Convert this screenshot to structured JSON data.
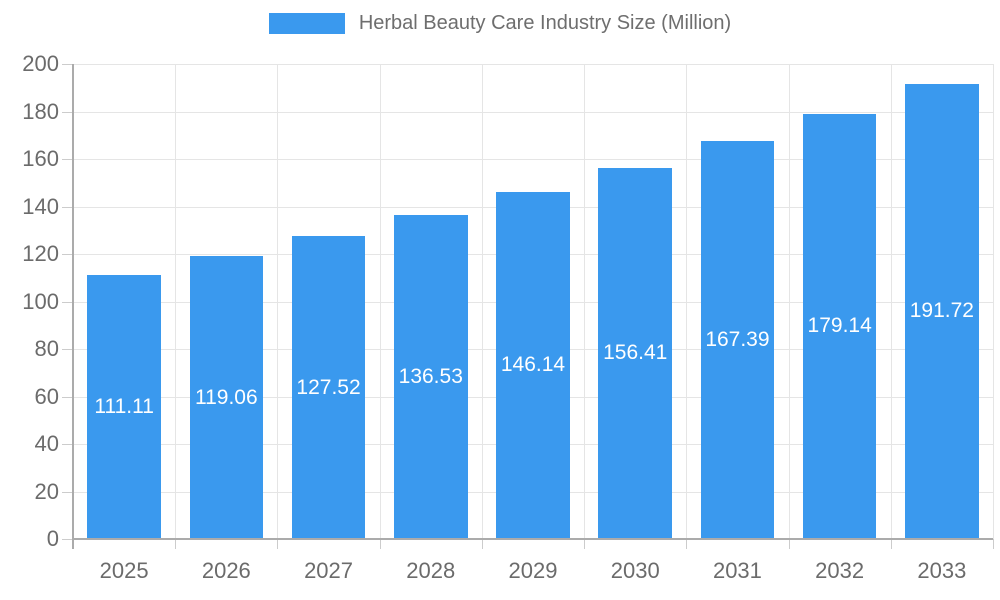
{
  "chart_data": {
    "type": "bar",
    "title": "Herbal Beauty Care Industry Size (Million)",
    "categories": [
      "2025",
      "2026",
      "2027",
      "2028",
      "2029",
      "2030",
      "2031",
      "2032",
      "2033"
    ],
    "values": [
      111.11,
      119.06,
      127.52,
      136.53,
      146.14,
      156.41,
      167.39,
      179.14,
      191.72
    ],
    "value_labels": [
      "111.11",
      "119.06",
      "127.52",
      "136.53",
      "146.14",
      "156.41",
      "167.39",
      "179.14",
      "191.72"
    ],
    "xlabel": "",
    "ylabel": "",
    "ylim": [
      0,
      200
    ],
    "ytick_step": 20,
    "ytick_labels": [
      "0",
      "20",
      "40",
      "60",
      "80",
      "100",
      "120",
      "140",
      "160",
      "180",
      "200"
    ],
    "grid": "on",
    "legend_position": "top-center",
    "colors": {
      "bar": "#3A99EE",
      "grid": "#E5E5E5",
      "axis": "#ABABAB",
      "tick": "#CCCCCC",
      "axis_text": "#6B6B6B",
      "legend_text": "#6E6E6E",
      "value_text": "#FFFFFF",
      "background": "#FFFFFF"
    }
  }
}
